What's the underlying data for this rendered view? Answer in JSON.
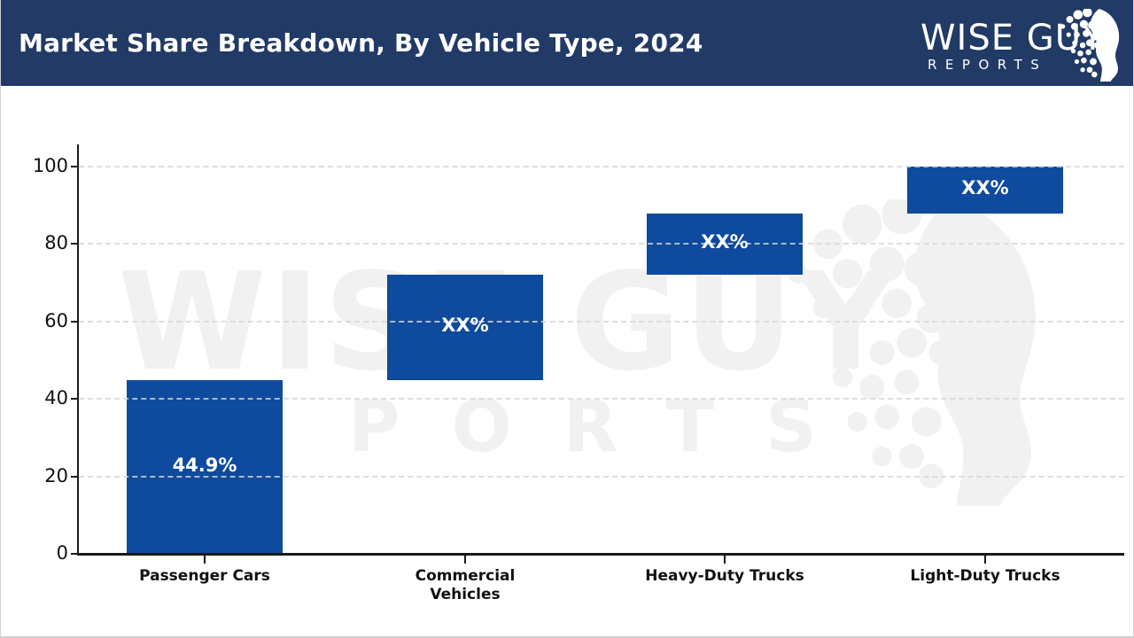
{
  "header": {
    "title": "Market Share Breakdown, By Vehicle Type, 2024",
    "bg_color": "#213a66",
    "logo": {
      "line1": "WISE GUY",
      "line2": "REPORTS"
    }
  },
  "watermark": {
    "line1": "WISE GUY",
    "line2": "PORTS"
  },
  "chart_data": {
    "type": "bar",
    "subtype": "waterfall",
    "title": "Market Share Breakdown, By Vehicle Type, 2024",
    "categories": [
      "Passenger Cars",
      "Commercial\nVehicles",
      "Heavy-Duty Trucks",
      "Light-Duty Trucks"
    ],
    "segments": [
      {
        "category": "Passenger Cars",
        "start": 0,
        "end": 44.9,
        "label": "44.9%"
      },
      {
        "category": "Commercial Vehicles",
        "start": 44.9,
        "end": 72.0,
        "label": "XX%"
      },
      {
        "category": "Heavy-Duty Trucks",
        "start": 72.0,
        "end": 87.8,
        "label": "XX%"
      },
      {
        "category": "Light-Duty Trucks",
        "start": 87.8,
        "end": 100.0,
        "label": "XX%"
      }
    ],
    "y_ticks": [
      0,
      20,
      40,
      60,
      80,
      100
    ],
    "ylim": [
      0,
      105
    ],
    "xlabel": "",
    "ylabel": "",
    "bar_color": "#0e4a9d",
    "grid": "horizontal-dashed",
    "legend": "none"
  }
}
